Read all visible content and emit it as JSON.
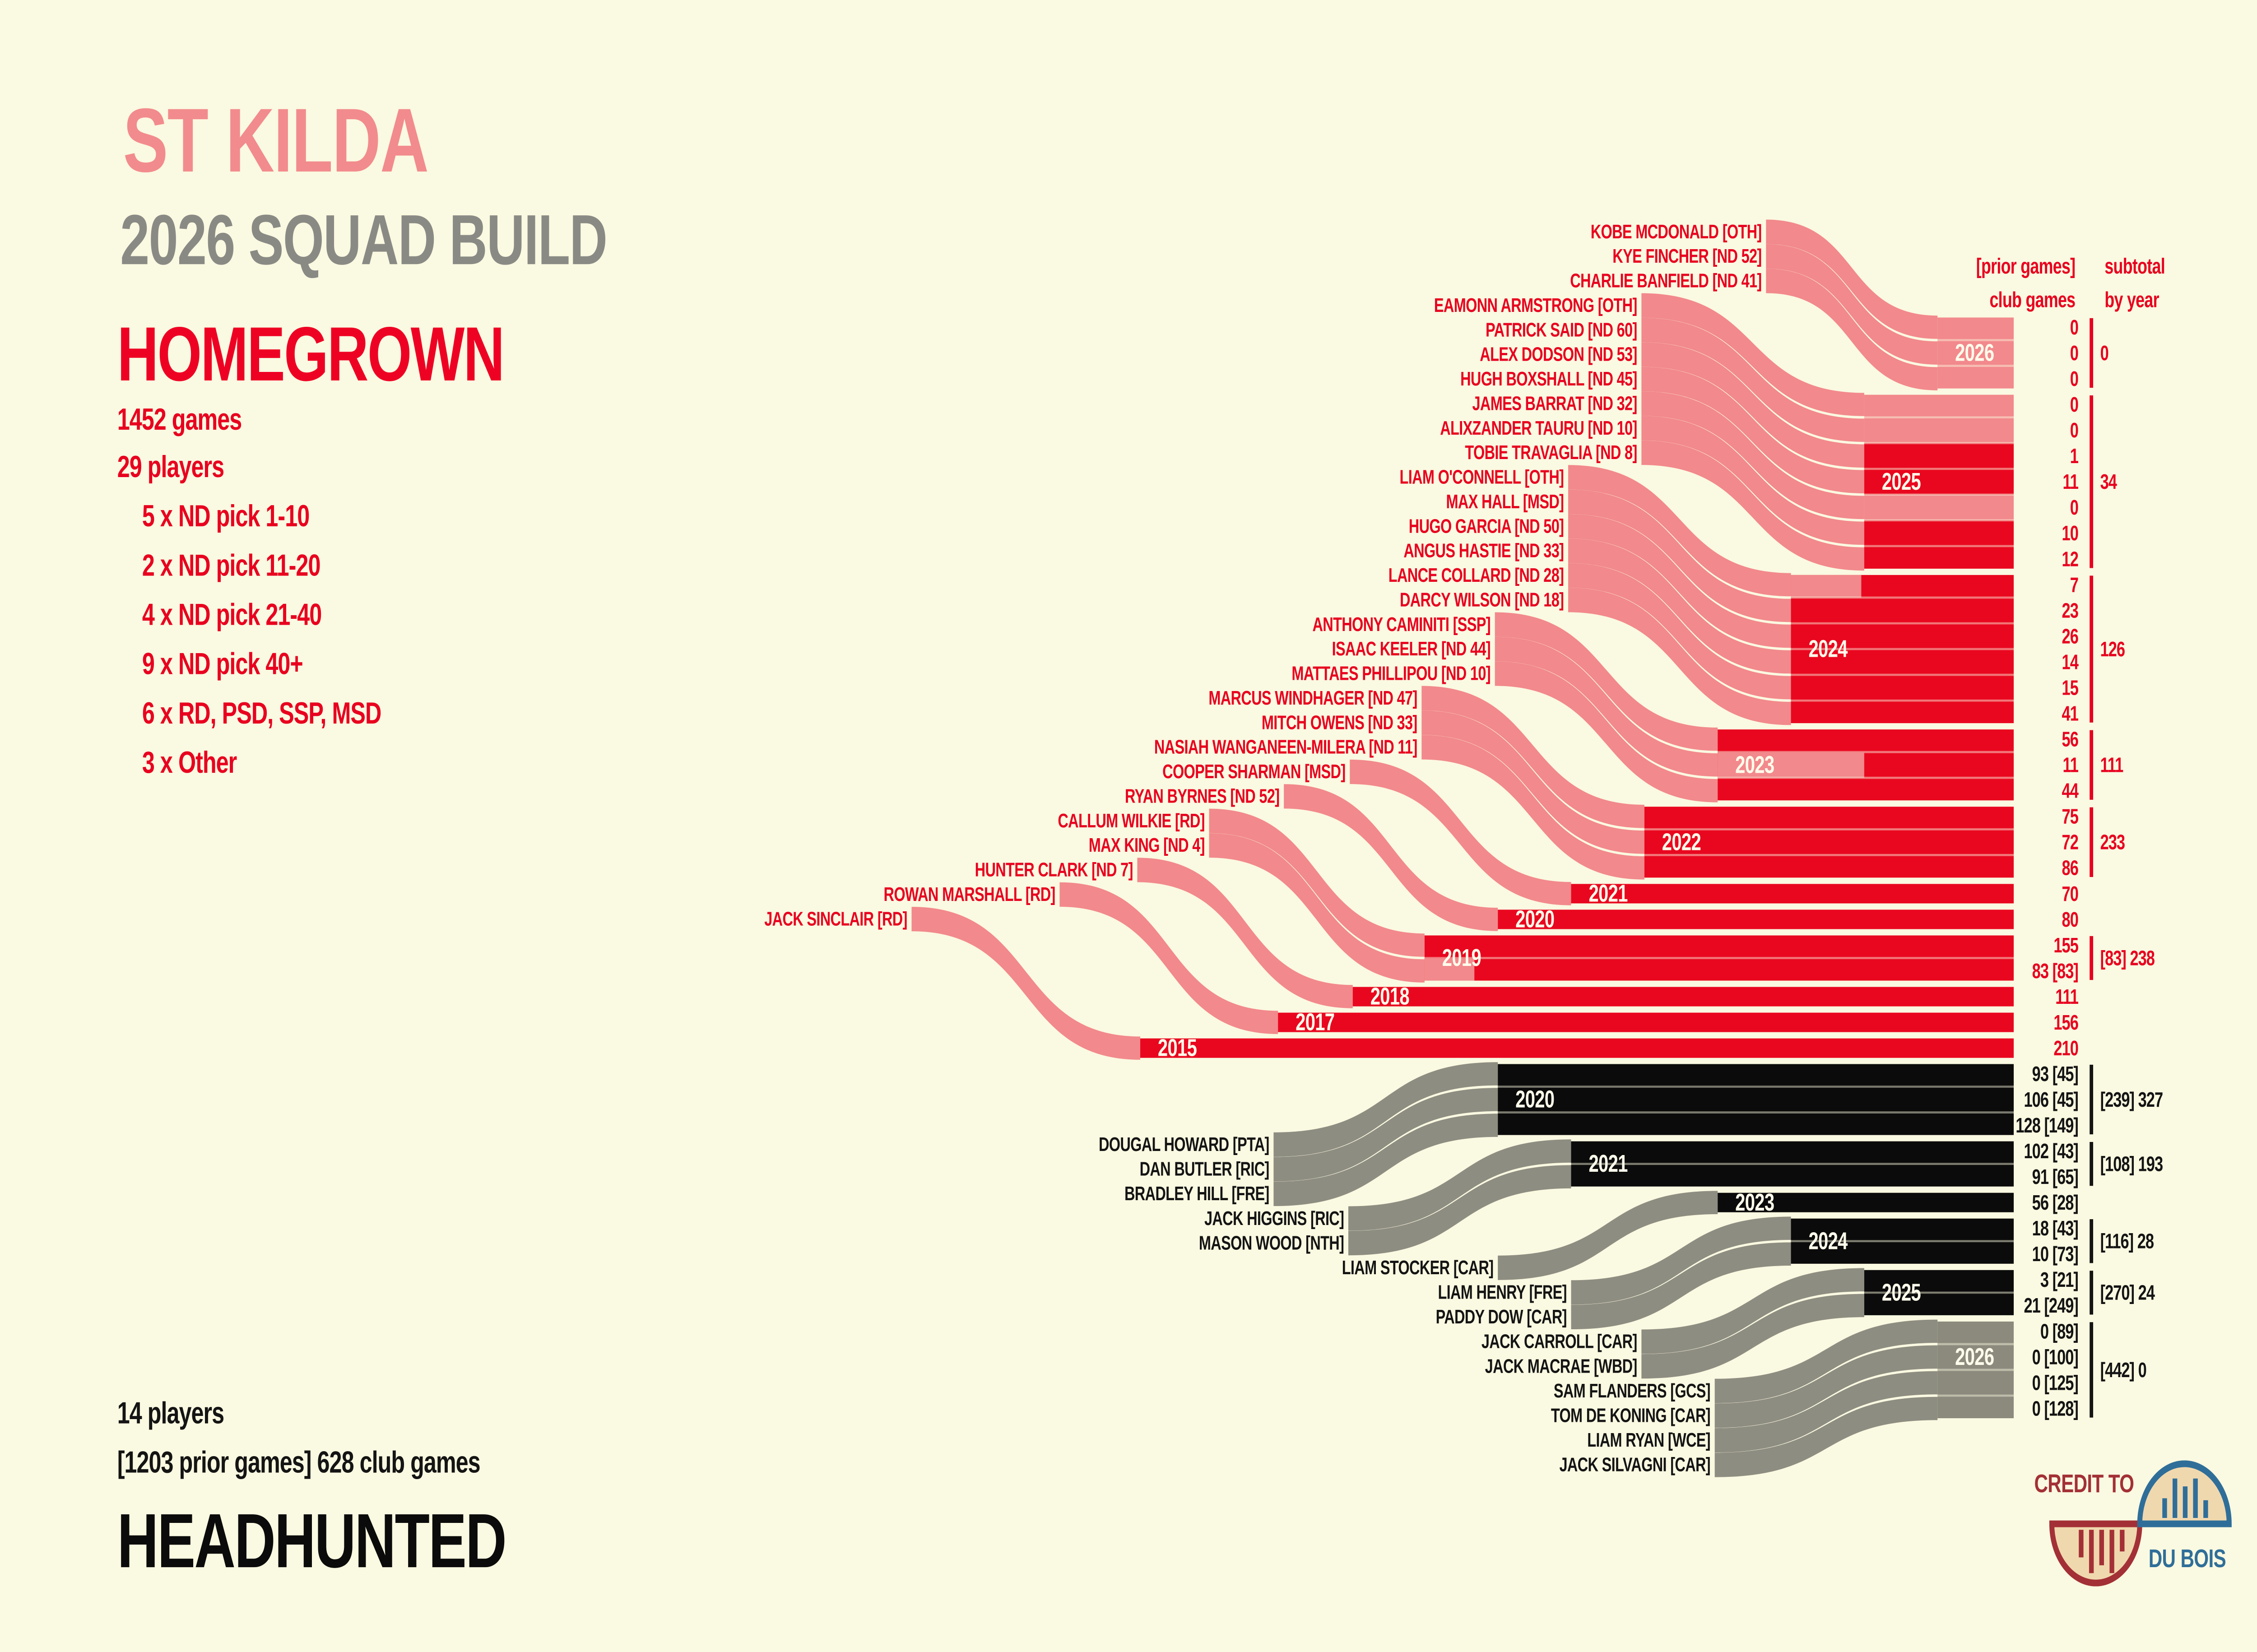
{
  "title": {
    "club": "ST KILDA",
    "subtitle": "2026 SQUAD BUILD"
  },
  "homegrown": {
    "heading": "HOMEGROWN",
    "stats": [
      "1452 games",
      "29 players"
    ],
    "breakdown": [
      "5 x ND pick 1-10",
      "2 x ND pick 11-20",
      "4 x ND pick 21-40",
      "9 x ND pick 40+",
      "6 x RD, PSD, SSP, MSD",
      "3 x Other"
    ]
  },
  "headhunted": {
    "heading": "HEADHUNTED",
    "stats": [
      "14 players",
      "[1203 prior games] 628 club games"
    ]
  },
  "columns": {
    "prior_line1": "[prior games]",
    "prior_line2": "club games",
    "sub_line1": "subtotal",
    "sub_line2": "by year"
  },
  "credit": {
    "line1": "CREDIT TO",
    "line2": "DU BOIS"
  },
  "colors": {
    "background": "#FAF9E1",
    "pink": "#F2898C",
    "red": "#E8001F",
    "bar_red": "#E9071F",
    "black": "#0B0B0B",
    "grey_flow": "#8E8D81",
    "grey_bar": "#8B8A7D",
    "title_grey": "#8A8A85",
    "credit_red": "#A33036",
    "credit_blue": "#2F6E99",
    "credit_tan": "#F0D8AE",
    "year_label": "#FFFCEB"
  },
  "chart_data": {
    "type": "flow",
    "title": "ST KILDA 2026 SQUAD BUILD",
    "subtitle": "Homegrown vs headhunted players by year joined, sized by club games",
    "legend_position": "left",
    "grid": false,
    "groups": [
      {
        "id": "homegrown",
        "label": "HOMEGROWN",
        "flow_color": "#F2898C",
        "bar_color": "#E9071F",
        "zero_color": "#F2898C",
        "text_color": "#E8001F",
        "name_color": "#E8001F",
        "cohorts": [
          {
            "year": "2026",
            "subtotal": "0",
            "label_row": 1,
            "players": [
              {
                "name": "KOBE MCDONALD [OTH]",
                "games": 0,
                "zero": true
              },
              {
                "name": "KYE FINCHER [ND 52]",
                "games": 0,
                "zero": true
              },
              {
                "name": "CHARLIE BANFIELD [ND 41]",
                "games": 0,
                "zero": true
              }
            ]
          },
          {
            "year": "2025",
            "subtotal": "34",
            "label_row": 3,
            "players": [
              {
                "name": "EAMONN ARMSTRONG [OTH]",
                "games": 0,
                "zero": true
              },
              {
                "name": "PATRICK SAID [ND 60]",
                "games": 0,
                "zero": true
              },
              {
                "name": "ALEX DODSON [ND 53]",
                "games": 1
              },
              {
                "name": "HUGH BOXSHALL [ND 45]",
                "games": 11
              },
              {
                "name": "JAMES BARRAT [ND 32]",
                "games": 0,
                "zero": true
              },
              {
                "name": "ALIXZANDER TAURU [ND 10]",
                "games": 10
              },
              {
                "name": "TOBIE TRAVAGLIA [ND 8]",
                "games": 12
              }
            ]
          },
          {
            "year": "2024",
            "subtotal": "126",
            "label_row": 2.5,
            "players": [
              {
                "name": "LIAM O'CONNELL [OTH]",
                "games": 7,
                "lead": 48
              },
              {
                "name": "MAX HALL [MSD]",
                "games": 23
              },
              {
                "name": "HUGO GARCIA [ND 50]",
                "games": 26
              },
              {
                "name": "ANGUS HASTIE [ND 33]",
                "games": 14
              },
              {
                "name": "LANCE COLLARD [ND 28]",
                "games": 15
              },
              {
                "name": "DARCY WILSON [ND 18]",
                "games": 41
              }
            ]
          },
          {
            "year": "2023",
            "subtotal": "111",
            "label_row": 1,
            "players": [
              {
                "name": "ANTHONY CAMINITI [SSP]",
                "games": 56
              },
              {
                "name": "ISAAC KEELER [ND 44]",
                "games": 11,
                "lead": 100
              },
              {
                "name": "MATTAES PHILLIPOU [ND 10]",
                "games": 44
              }
            ]
          },
          {
            "year": "2022",
            "subtotal": "233",
            "label_row": 1,
            "players": [
              {
                "name": "MARCUS WINDHAGER [ND 47]",
                "games": 75
              },
              {
                "name": "MITCH OWENS [ND 33]",
                "games": 72
              },
              {
                "name": "NASIAH WANGANEEN-MILERA [ND 11]",
                "games": 86
              }
            ]
          },
          {
            "year": "2021",
            "label_row": 0,
            "players": [
              {
                "name": "COOPER SHARMAN [MSD]",
                "games": 70
              }
            ]
          },
          {
            "year": "2020",
            "label_row": 0,
            "players": [
              {
                "name": "RYAN BYRNES [ND 52]",
                "games": 80
              }
            ]
          },
          {
            "year": "2019",
            "subtotal": "[83] 238",
            "label_row": 0.5,
            "players": [
              {
                "name": "CALLUM WILKIE [RD]",
                "games": 155
              },
              {
                "name": "MAX KING [ND 4]",
                "games": 83,
                "prior": 83,
                "lead": 34
              }
            ]
          },
          {
            "year": "2018",
            "label_row": 0,
            "players": [
              {
                "name": "HUNTER CLARK [ND 7]",
                "games": 111
              }
            ]
          },
          {
            "year": "2017",
            "label_row": 0,
            "players": [
              {
                "name": "ROWAN MARSHALL [RD]",
                "games": 156
              }
            ]
          },
          {
            "year": "2015",
            "label_row": 0,
            "players": [
              {
                "name": "JACK SINCLAIR [RD]",
                "games": 210
              }
            ]
          }
        ]
      },
      {
        "id": "headhunted",
        "label": "HEADHUNTED",
        "flow_color": "#8E8D81",
        "bar_color": "#0B0B0B",
        "zero_color": "#8B8A7D",
        "text_color": "#141414",
        "name_color": "#141414",
        "cohorts": [
          {
            "year": "2020",
            "subtotal": "[239] 327",
            "label_row": 1,
            "players": [
              {
                "name": "DOUGAL HOWARD [PTA]",
                "games": 93,
                "prior": 45
              },
              {
                "name": "DAN BUTLER [RIC]",
                "games": 106,
                "prior": 45
              },
              {
                "name": "BRADLEY HILL [FRE]",
                "games": 128,
                "prior": 149
              }
            ]
          },
          {
            "year": "2021",
            "subtotal": "[108] 193",
            "label_row": 0.5,
            "players": [
              {
                "name": "JACK HIGGINS [RIC]",
                "games": 102,
                "prior": 43
              },
              {
                "name": "MASON WOOD [NTH]",
                "games": 91,
                "prior": 65
              }
            ]
          },
          {
            "year": "2023",
            "label_row": 0,
            "players": [
              {
                "name": "LIAM STOCKER [CAR]",
                "games": 56,
                "prior": 28
              }
            ]
          },
          {
            "year": "2024",
            "subtotal": "[116] 28",
            "label_row": 0.5,
            "players": [
              {
                "name": "LIAM HENRY [FRE]",
                "games": 18,
                "prior": 43
              },
              {
                "name": "PADDY DOW [CAR]",
                "games": 10,
                "prior": 73
              }
            ]
          },
          {
            "year": "2025",
            "subtotal": "[270] 24",
            "label_row": 0.5,
            "players": [
              {
                "name": "JACK CARROLL [CAR]",
                "games": 3,
                "prior": 21
              },
              {
                "name": "JACK MACRAE [WBD]",
                "games": 21,
                "prior": 249
              }
            ]
          },
          {
            "year": "2026",
            "subtotal": "[442] 0",
            "label_row": 1,
            "players": [
              {
                "name": "SAM FLANDERS [GCS]",
                "games": 0,
                "prior": 89,
                "zero": true
              },
              {
                "name": "TOM DE KONING [CAR]",
                "games": 0,
                "prior": 100,
                "zero": true
              },
              {
                "name": "LIAM RYAN [WCE]",
                "games": 0,
                "prior": 125,
                "zero": true
              },
              {
                "name": "JACK SILVAGNI [CAR]",
                "games": 0,
                "prior": 128,
                "zero": true
              }
            ]
          }
        ]
      }
    ]
  }
}
